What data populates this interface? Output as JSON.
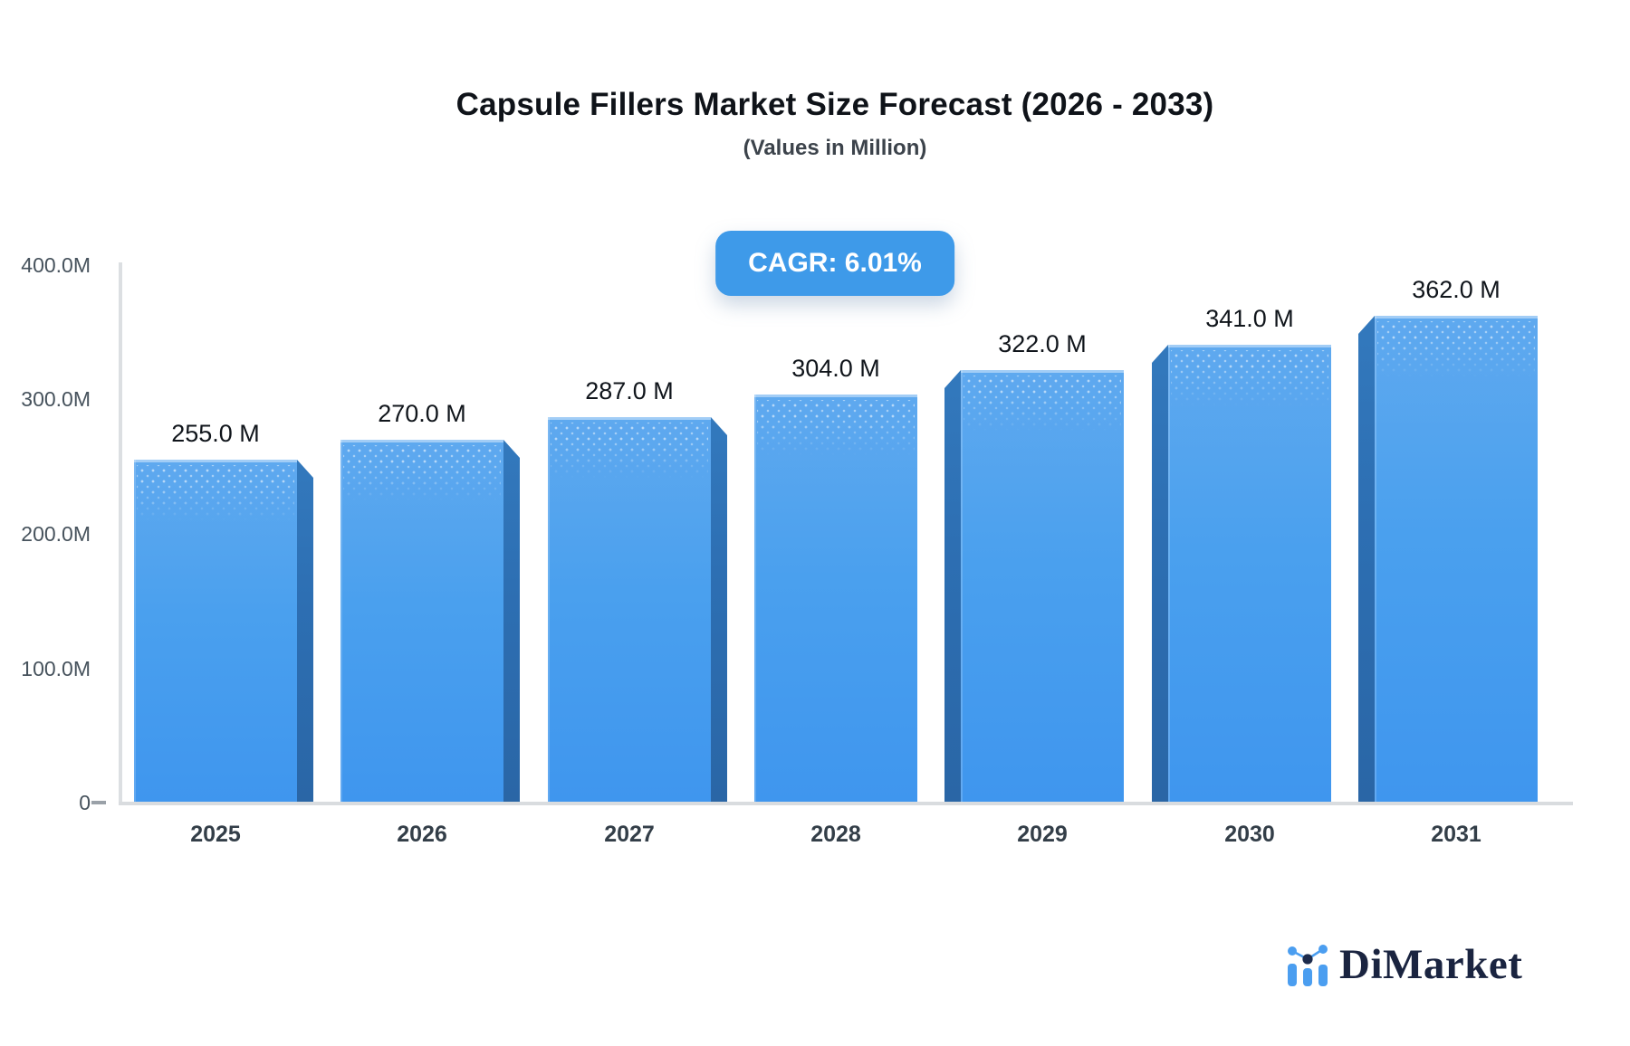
{
  "header": {
    "title": "Capsule Fillers Market Size Forecast (2026 - 2033)",
    "subtitle": "(Values in Million)",
    "cagr_badge": "CAGR: 6.01%"
  },
  "chart_data": {
    "type": "bar",
    "categories": [
      "2025",
      "2026",
      "2027",
      "2028",
      "2029",
      "2030",
      "2031"
    ],
    "values": [
      255,
      270,
      287,
      304,
      322,
      341,
      362
    ],
    "value_labels": [
      "255.0 M",
      "270.0 M",
      "287.0 M",
      "304.0 M",
      "322.0 M",
      "341.0 M",
      "362.0 M"
    ],
    "title": "Capsule Fillers Market Size Forecast (2026 - 2033)",
    "subtitle": "(Values in Million)",
    "xlabel": "",
    "ylabel": "",
    "ylim": [
      0,
      400
    ],
    "grid": false,
    "legend": false,
    "y_ticks": [
      {
        "value": 400,
        "label": "400.0M"
      },
      {
        "value": 300,
        "label": "300.0M"
      },
      {
        "value": 200,
        "label": "200.0M"
      },
      {
        "value": 100,
        "label": "100.0M"
      },
      {
        "value": 0,
        "label": "0"
      }
    ],
    "annotation": "CAGR: 6.01%",
    "bar_style": "3d-extruded"
  },
  "colors": {
    "badge_blue": "#3e9ae9",
    "bar_face_top": "#5fa9ef",
    "bar_face_bottom": "#3f96ee",
    "bar_side": "#2d6fb3",
    "axis_line": "#dcdfe2",
    "tick_text": "#46525c",
    "year_text": "#333e48",
    "value_text": "#10151b",
    "title_text": "#0f1319",
    "logo_navy": "#1a2440",
    "logo_blue": "#4b9ef0"
  },
  "logo": {
    "text": "DiMarket"
  }
}
